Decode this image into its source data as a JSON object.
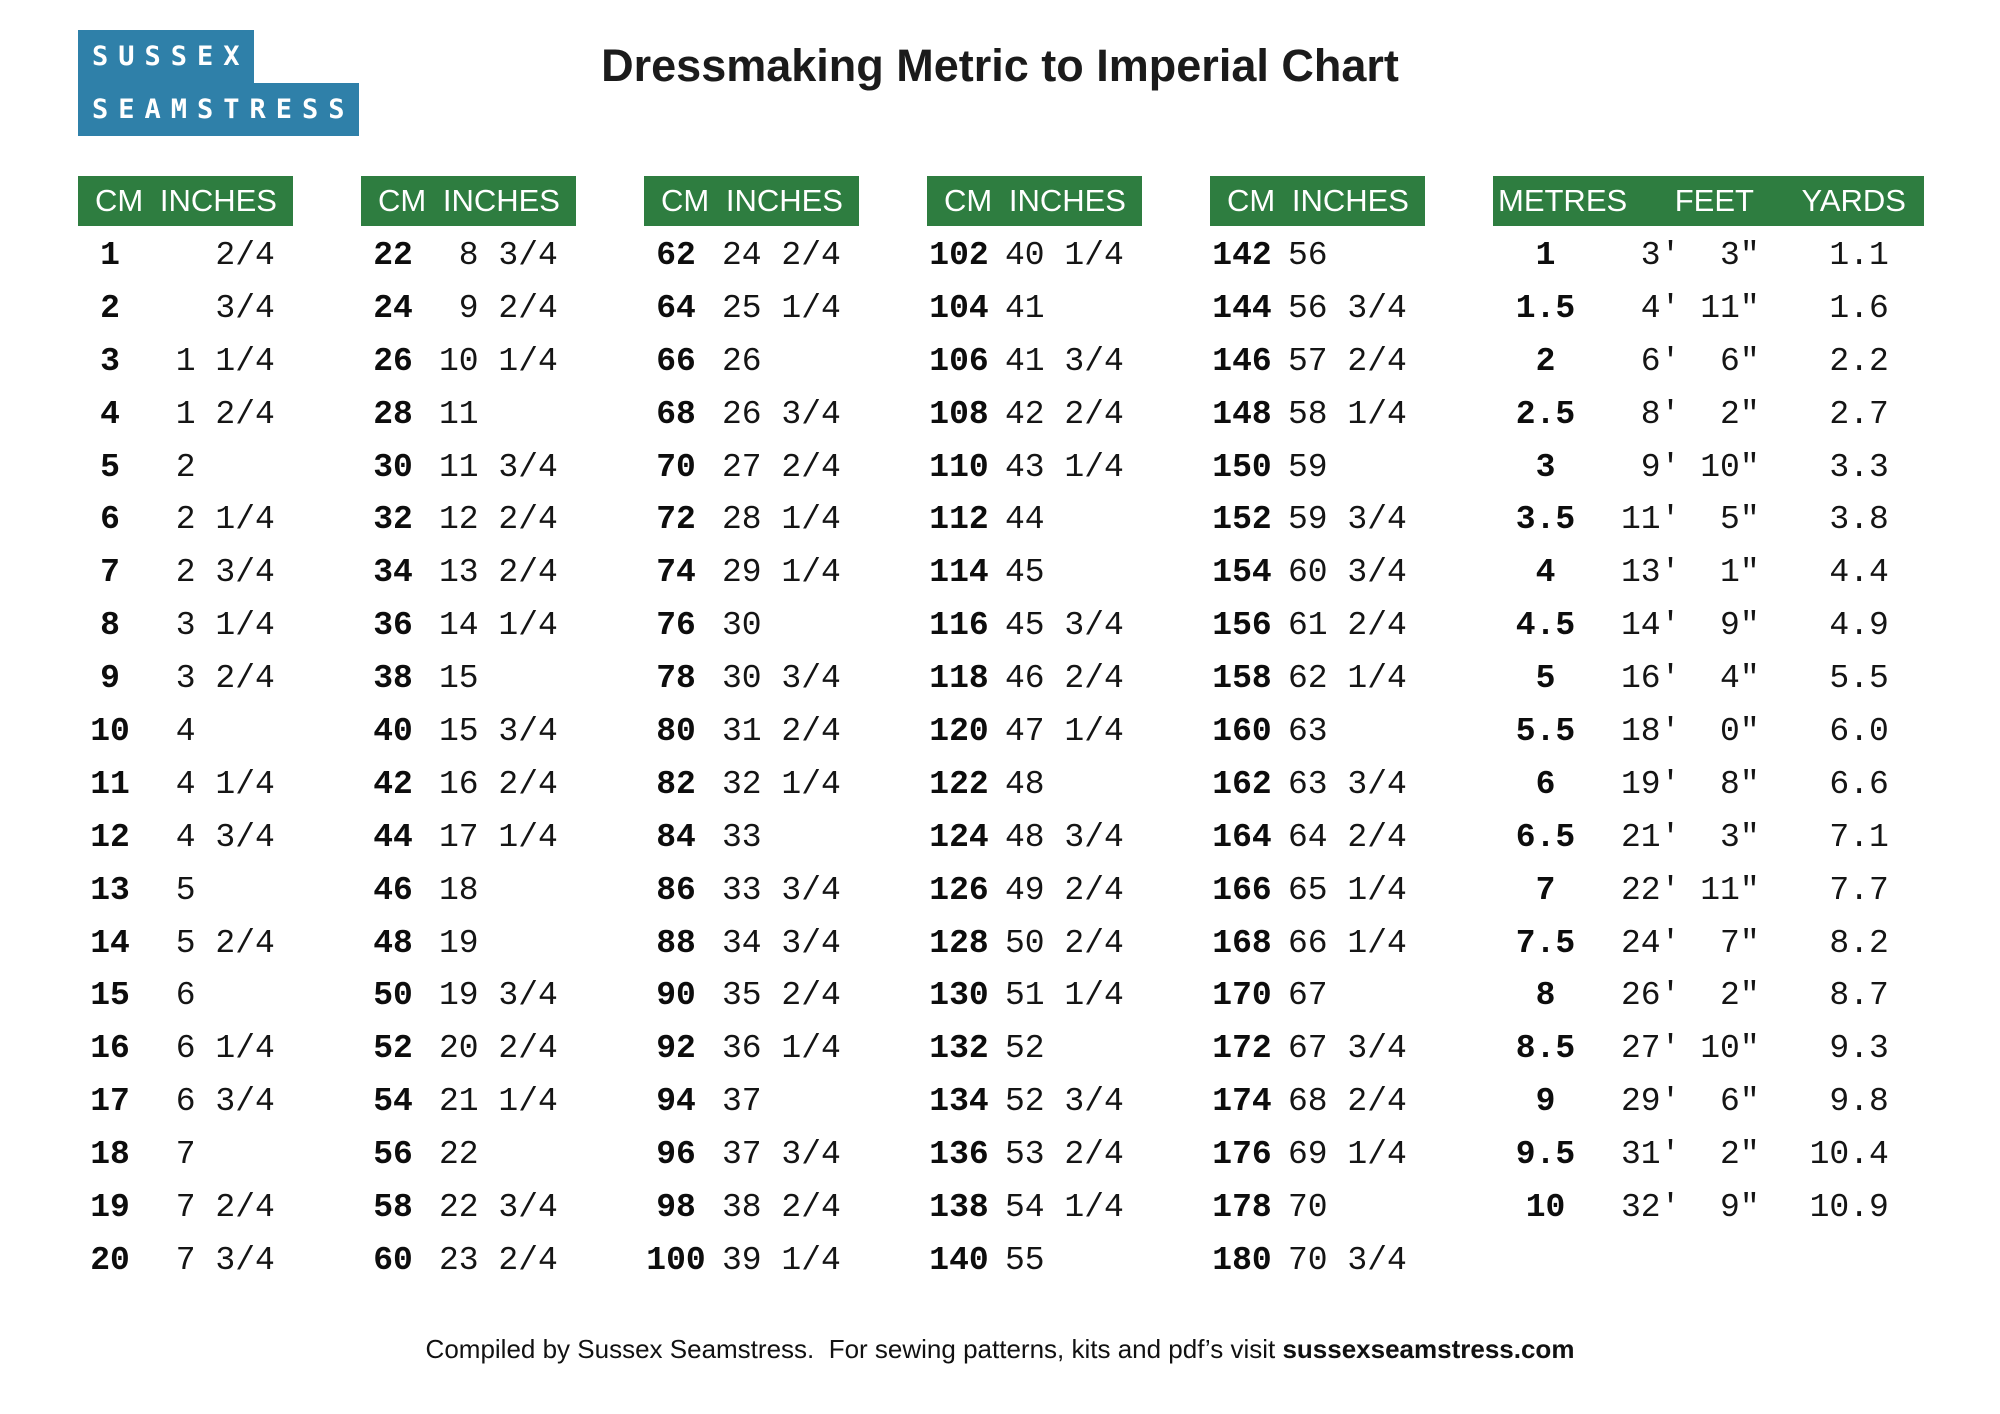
{
  "colors": {
    "logo-blue": "#2f80a9",
    "header-green": "#2e7d40"
  },
  "logo": {
    "line1": "SUSSEX",
    "line2": "SEAMSTRESS"
  },
  "title": "Dressmaking Metric to Imperial Chart",
  "cm_tables": [
    {
      "headers": [
        "CM",
        "INCHES"
      ],
      "rows": [
        [
          "1",
          "   2/4"
        ],
        [
          "2",
          "   3/4"
        ],
        [
          "3",
          " 1 1/4"
        ],
        [
          "4",
          " 1 2/4"
        ],
        [
          "5",
          " 2"
        ],
        [
          "6",
          " 2 1/4"
        ],
        [
          "7",
          " 2 3/4"
        ],
        [
          "8",
          " 3 1/4"
        ],
        [
          "9",
          " 3 2/4"
        ],
        [
          "10",
          " 4"
        ],
        [
          "11",
          " 4 1/4"
        ],
        [
          "12",
          " 4 3/4"
        ],
        [
          "13",
          " 5"
        ],
        [
          "14",
          " 5 2/4"
        ],
        [
          "15",
          " 6"
        ],
        [
          "16",
          " 6 1/4"
        ],
        [
          "17",
          " 6 3/4"
        ],
        [
          "18",
          " 7"
        ],
        [
          "19",
          " 7 2/4"
        ],
        [
          "20",
          " 7 3/4"
        ]
      ]
    },
    {
      "headers": [
        "CM",
        "INCHES"
      ],
      "rows": [
        [
          "22",
          " 8 3/4"
        ],
        [
          "24",
          " 9 2/4"
        ],
        [
          "26",
          "10 1/4"
        ],
        [
          "28",
          "11"
        ],
        [
          "30",
          "11 3/4"
        ],
        [
          "32",
          "12 2/4"
        ],
        [
          "34",
          "13 2/4"
        ],
        [
          "36",
          "14 1/4"
        ],
        [
          "38",
          "15"
        ],
        [
          "40",
          "15 3/4"
        ],
        [
          "42",
          "16 2/4"
        ],
        [
          "44",
          "17 1/4"
        ],
        [
          "46",
          "18"
        ],
        [
          "48",
          "19"
        ],
        [
          "50",
          "19 3/4"
        ],
        [
          "52",
          "20 2/4"
        ],
        [
          "54",
          "21 1/4"
        ],
        [
          "56",
          "22"
        ],
        [
          "58",
          "22 3/4"
        ],
        [
          "60",
          "23 2/4"
        ]
      ]
    },
    {
      "headers": [
        "CM",
        "INCHES"
      ],
      "rows": [
        [
          "62",
          "24 2/4"
        ],
        [
          "64",
          "25 1/4"
        ],
        [
          "66",
          "26"
        ],
        [
          "68",
          "26 3/4"
        ],
        [
          "70",
          "27 2/4"
        ],
        [
          "72",
          "28 1/4"
        ],
        [
          "74",
          "29 1/4"
        ],
        [
          "76",
          "30"
        ],
        [
          "78",
          "30 3/4"
        ],
        [
          "80",
          "31 2/4"
        ],
        [
          "82",
          "32 1/4"
        ],
        [
          "84",
          "33"
        ],
        [
          "86",
          "33 3/4"
        ],
        [
          "88",
          "34 3/4"
        ],
        [
          "90",
          "35 2/4"
        ],
        [
          "92",
          "36 1/4"
        ],
        [
          "94",
          "37"
        ],
        [
          "96",
          "37 3/4"
        ],
        [
          "98",
          "38 2/4"
        ],
        [
          "100",
          "39 1/4"
        ]
      ]
    },
    {
      "headers": [
        "CM",
        "INCHES"
      ],
      "rows": [
        [
          "102",
          "40 1/4"
        ],
        [
          "104",
          "41"
        ],
        [
          "106",
          "41 3/4"
        ],
        [
          "108",
          "42 2/4"
        ],
        [
          "110",
          "43 1/4"
        ],
        [
          "112",
          "44"
        ],
        [
          "114",
          "45"
        ],
        [
          "116",
          "45 3/4"
        ],
        [
          "118",
          "46 2/4"
        ],
        [
          "120",
          "47 1/4"
        ],
        [
          "122",
          "48"
        ],
        [
          "124",
          "48 3/4"
        ],
        [
          "126",
          "49 2/4"
        ],
        [
          "128",
          "50 2/4"
        ],
        [
          "130",
          "51 1/4"
        ],
        [
          "132",
          "52"
        ],
        [
          "134",
          "52 3/4"
        ],
        [
          "136",
          "53 2/4"
        ],
        [
          "138",
          "54 1/4"
        ],
        [
          "140",
          "55"
        ]
      ]
    },
    {
      "headers": [
        "CM",
        "INCHES"
      ],
      "rows": [
        [
          "142",
          "56"
        ],
        [
          "144",
          "56 3/4"
        ],
        [
          "146",
          "57 2/4"
        ],
        [
          "148",
          "58 1/4"
        ],
        [
          "150",
          "59"
        ],
        [
          "152",
          "59 3/4"
        ],
        [
          "154",
          "60 3/4"
        ],
        [
          "156",
          "61 2/4"
        ],
        [
          "158",
          "62 1/4"
        ],
        [
          "160",
          "63"
        ],
        [
          "162",
          "63 3/4"
        ],
        [
          "164",
          "64 2/4"
        ],
        [
          "166",
          "65 1/4"
        ],
        [
          "168",
          "66 1/4"
        ],
        [
          "170",
          "67"
        ],
        [
          "172",
          "67 3/4"
        ],
        [
          "174",
          "68 2/4"
        ],
        [
          "176",
          "69 1/4"
        ],
        [
          "178",
          "70"
        ],
        [
          "180",
          "70 3/4"
        ]
      ]
    }
  ],
  "metres_table": {
    "headers": [
      "METRES",
      "FEET",
      "YARDS"
    ],
    "rows": [
      [
        "1",
        " 3'  3\"",
        " 1.1"
      ],
      [
        "1.5",
        " 4' 11\"",
        " 1.6"
      ],
      [
        "2",
        " 6'  6\"",
        " 2.2"
      ],
      [
        "2.5",
        " 8'  2\"",
        " 2.7"
      ],
      [
        "3",
        " 9' 10\"",
        " 3.3"
      ],
      [
        "3.5",
        "11'  5\"",
        " 3.8"
      ],
      [
        "4",
        "13'  1\"",
        " 4.4"
      ],
      [
        "4.5",
        "14'  9\"",
        " 4.9"
      ],
      [
        "5",
        "16'  4\"",
        " 5.5"
      ],
      [
        "5.5",
        "18'  0\"",
        " 6.0"
      ],
      [
        "6",
        "19'  8\"",
        " 6.6"
      ],
      [
        "6.5",
        "21'  3\"",
        " 7.1"
      ],
      [
        "7",
        "22' 11\"",
        " 7.7"
      ],
      [
        "7.5",
        "24'  7\"",
        " 8.2"
      ],
      [
        "8",
        "26'  2\"",
        " 8.7"
      ],
      [
        "8.5",
        "27' 10\"",
        " 9.3"
      ],
      [
        "9",
        "29'  6\"",
        " 9.8"
      ],
      [
        "9.5",
        "31'  2\"",
        "10.4"
      ],
      [
        "10",
        "32'  9\"",
        "10.9"
      ]
    ]
  },
  "footer": {
    "text": "Compiled by Sussex Seamstress.  For sewing patterns, kits and pdf’s visit ",
    "site": "sussexseamstress.com"
  }
}
